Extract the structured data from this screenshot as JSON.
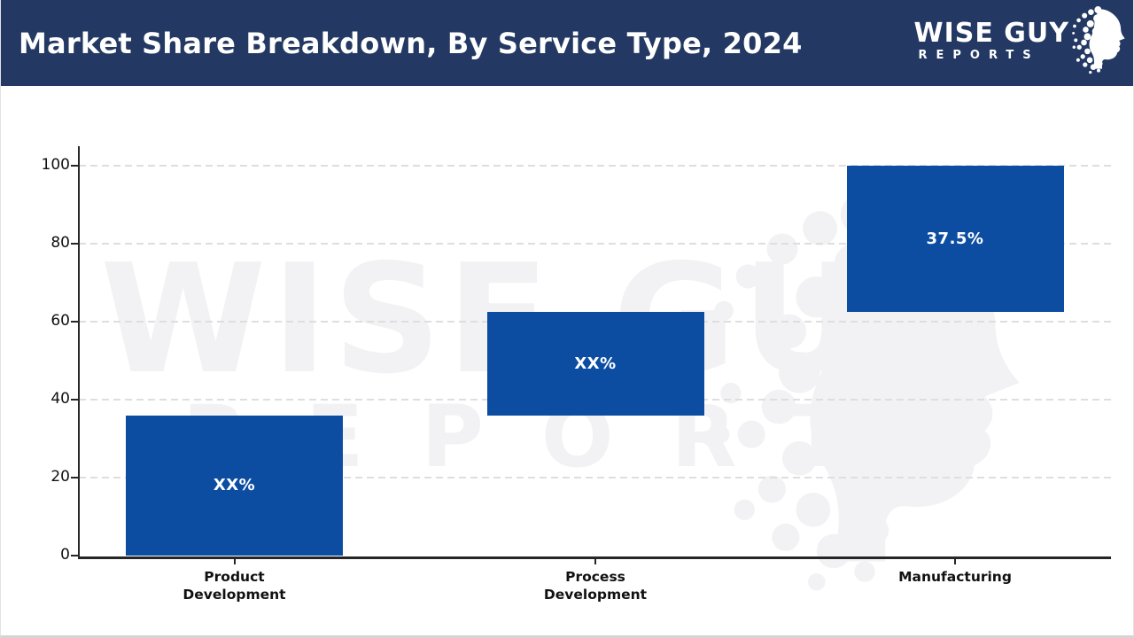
{
  "header": {
    "title": "Market Share Breakdown, By Service Type, 2024",
    "logo": {
      "name": "WISE GUY",
      "tagline": "REPORTS"
    }
  },
  "watermark": {
    "line1": "WISE GUY",
    "line2": "REPORTS"
  },
  "chart_data": {
    "type": "bar",
    "subtype": "waterfall-floating-bars",
    "title": "Market Share Breakdown, By Service Type, 2024",
    "xlabel": "",
    "ylabel": "",
    "ylim": [
      0,
      100
    ],
    "yticks": [
      0,
      20,
      40,
      60,
      80,
      100
    ],
    "grid": "horizontal-dashed",
    "legend": "none",
    "categories": [
      "Product\nDevelopment",
      "Process\nDevelopment",
      "Manufacturing"
    ],
    "bars": [
      {
        "category": "Product Development",
        "start": 0,
        "end": 36,
        "value_label": "XX%"
      },
      {
        "category": "Process Development",
        "start": 36,
        "end": 62.5,
        "value_label": "XX%"
      },
      {
        "category": "Manufacturing",
        "start": 62.5,
        "end": 100,
        "value_label": "37.5%"
      }
    ]
  },
  "colors": {
    "page_bg": "#ffffff",
    "header_bg": "#233963",
    "header_text": "#ffffff",
    "bar_fill": "#0c4da2",
    "bar_label_text": "#ffffff",
    "axis_line": "#262626",
    "tick_text": "#111111",
    "category_text": "#111111",
    "gridline": "#dedede",
    "watermark": "#f2f2f4"
  }
}
